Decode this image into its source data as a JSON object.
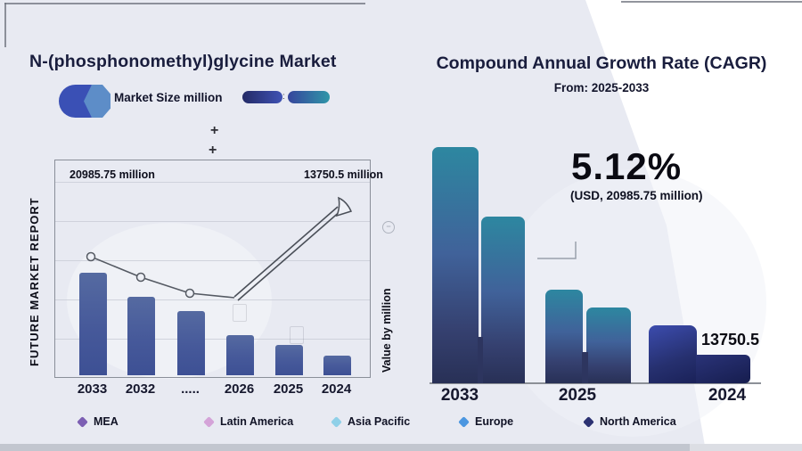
{
  "header": {
    "title": "N-(phosphonomethyl)glycine Market",
    "market_size_label": "Market Size million",
    "pill_separator": ":",
    "plus_marks": [
      "+",
      "+"
    ]
  },
  "watermarks": {
    "left_vertical": "FUTURE MARKET REPORT"
  },
  "left_chart": {
    "top_left_value": "20985.75 million",
    "top_right_value": "13750.5 million",
    "x_labels": [
      "2033",
      "2032",
      ".....",
      "2026",
      "2025",
      "2024"
    ]
  },
  "right_panel": {
    "title": "Compound Annual Growth Rate (CAGR)",
    "subtitle": "From: 2025-2033",
    "cagr_value": "5.12%",
    "cagr_detail": "(USD, 20985.75 million)",
    "value_axis_label": "Value by million",
    "annotation_value": "13750.5",
    "x_labels": [
      "2033",
      "2025",
      "2024"
    ]
  },
  "legend": {
    "items": [
      {
        "label": "MEA",
        "color": "#7c5fb3"
      },
      {
        "label": "Latin America",
        "color": "#d4a3d8"
      },
      {
        "label": "Asia Pacific",
        "color": "#8fd0e8"
      },
      {
        "label": "Europe",
        "color": "#4b96e0"
      },
      {
        "label": "North America",
        "color": "#2c3272"
      }
    ]
  },
  "colors": {
    "background_light": "#e8eaf2",
    "left_bar": "#46599a",
    "teal_bar_top": "#2d87a0",
    "teal_bar_bottom": "#283056",
    "navy_bar_top": "#3c4cae",
    "navy_bar_bottom": "#161d4e",
    "title_text": "#191d3d"
  },
  "chart_data": [
    {
      "type": "bar",
      "subtype": "stylized bars with descending trend line ending in rising arrow",
      "title": "N-(phosphonomethyl)glycine Market — Market Size million",
      "categories": [
        "2033",
        "2032",
        ".....",
        "2026",
        "2025",
        "2024"
      ],
      "values_relative_pct": [
        47.5,
        36.4,
        29.8,
        18.6,
        14.0,
        9.1
      ],
      "labeled_values": {
        "2033": "20985.75 million",
        "2024": "13750.5 million"
      },
      "trend_line_note": "line with circular markers descends over 2033, 2032, ..... then arrow rises steeply to upper right toward 13750.5 million label",
      "ylabel_right": "Value by million",
      "grid": true,
      "legend_position": "bottom"
    },
    {
      "type": "bar",
      "title": "Compound Annual Growth Rate (CAGR)",
      "subtitle": "From: 2025-2033",
      "categories": [
        "2033",
        "2025",
        "2024"
      ],
      "series": [
        {
          "name": "bar-1",
          "values_relative_pct": [
            100.0,
            39.6,
            24.5
          ]
        },
        {
          "name": "bar-2",
          "values_relative_pct": [
            70.5,
            32.0,
            12.1
          ]
        }
      ],
      "annotations": [
        {
          "text": "13750.5",
          "target": "2024"
        }
      ],
      "cagr": "5.12%",
      "cagr_detail": "(USD, 20985.75 million)",
      "grid": false,
      "legend_position": "bottom"
    }
  ]
}
